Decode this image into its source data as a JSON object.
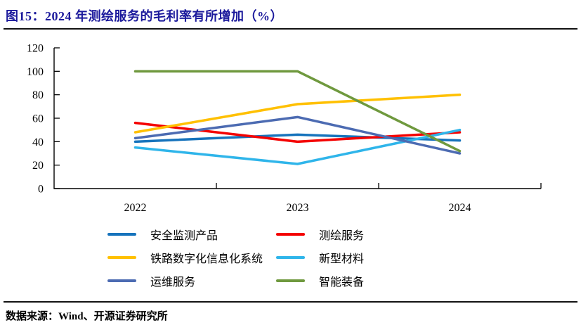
{
  "figure": {
    "title": "图15：2024 年测绘服务的毛利率有所增加（%）",
    "source": "数据来源：Wind、开源证券研究所"
  },
  "chart_data": {
    "type": "line",
    "title": "图15：2024 年测绘服务的毛利率有所增加（%）",
    "categories": [
      "2022",
      "2023",
      "2024"
    ],
    "series": [
      {
        "name": "安全监测产品",
        "color": "#1673BC",
        "values": [
          40,
          46,
          41
        ]
      },
      {
        "name": "测绘服务",
        "color": "#F40000",
        "values": [
          56,
          40,
          48
        ]
      },
      {
        "name": "铁路数字化信息化系统",
        "color": "#FFC000",
        "values": [
          48,
          72,
          80
        ]
      },
      {
        "name": "新型材料",
        "color": "#2FB5EA",
        "values": [
          35,
          21,
          50
        ]
      },
      {
        "name": "运维服务",
        "color": "#4C6BB2",
        "values": [
          43,
          61,
          30
        ]
      },
      {
        "name": "智能装备",
        "color": "#6F993E",
        "values": [
          100,
          100,
          32
        ]
      }
    ],
    "ylim": [
      0,
      120
    ],
    "ystep": 20,
    "grid": false,
    "legend_position": "bottom",
    "axis_color": "#000000"
  }
}
